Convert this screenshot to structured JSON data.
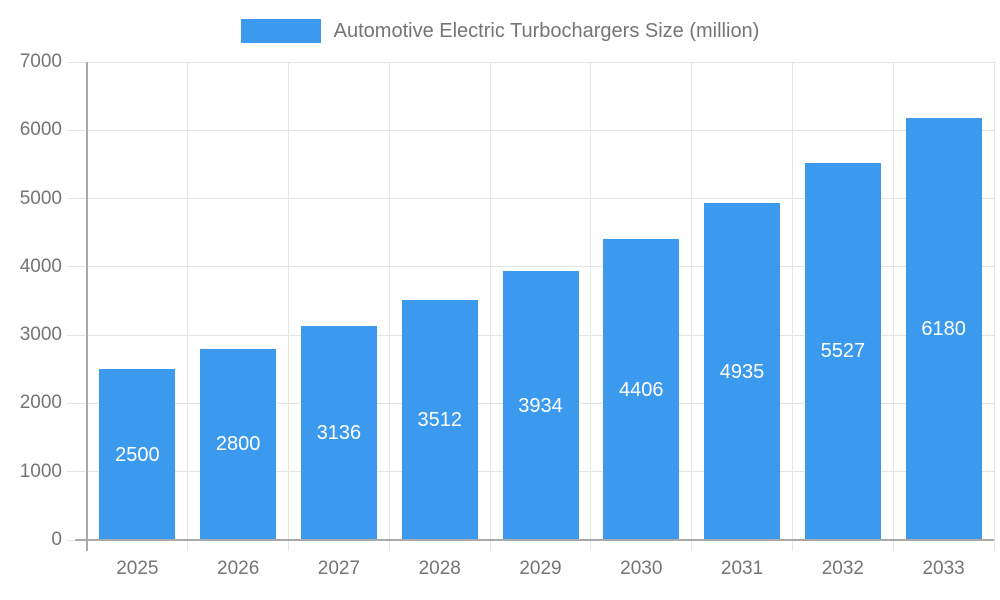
{
  "legend": {
    "label": "Automotive Electric Turbochargers Size (million)"
  },
  "chart_data": {
    "type": "bar",
    "title": "Automotive Electric Turbochargers Size (million)",
    "categories": [
      "2025",
      "2026",
      "2027",
      "2028",
      "2029",
      "2030",
      "2031",
      "2032",
      "2033"
    ],
    "values": [
      2500,
      2800,
      3136,
      3512,
      3934,
      4406,
      4935,
      5527,
      6180
    ],
    "xlabel": "",
    "ylabel": "",
    "ylim": [
      0,
      7000
    ],
    "yticks": [
      0,
      1000,
      2000,
      3000,
      4000,
      5000,
      6000,
      7000
    ],
    "grid": true,
    "legend_position": "top",
    "bar_color": "#3B99EE",
    "bar_label_color": "#ffffff",
    "grid_color": "#e4e4e4",
    "axis_color": "#a9a9a9",
    "text_color": "#757575",
    "background_color": "#ffffff"
  }
}
